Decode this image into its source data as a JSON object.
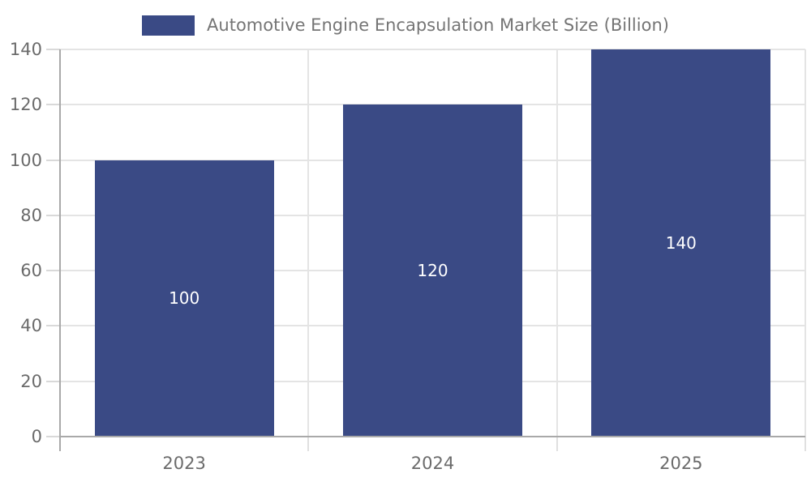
{
  "legend": {
    "title": "Automotive Engine Encapsulation Market Size (Billion)"
  },
  "chart_data": {
    "type": "bar",
    "title": "Automotive Engine Encapsulation Market Size (Billion)",
    "categories": [
      "2023",
      "2024",
      "2025"
    ],
    "values": [
      100,
      120,
      140
    ],
    "bar_labels": [
      "100",
      "120",
      "140"
    ],
    "xlabel": "",
    "ylabel": "",
    "ylim": [
      0,
      140
    ],
    "ytick_step": 20,
    "ytick_labels": [
      "0",
      "20",
      "40",
      "60",
      "80",
      "100",
      "120",
      "140"
    ],
    "grid": true,
    "legend_position": "top-center",
    "colors": {
      "bar": "#3a4a85",
      "bar_label_text": "#ffffff",
      "grid": "#e4e4e4",
      "spine": "#a9a9a9",
      "tick_text": "#6b6b6b",
      "title_text": "#757575",
      "background": "#ffffff"
    }
  }
}
